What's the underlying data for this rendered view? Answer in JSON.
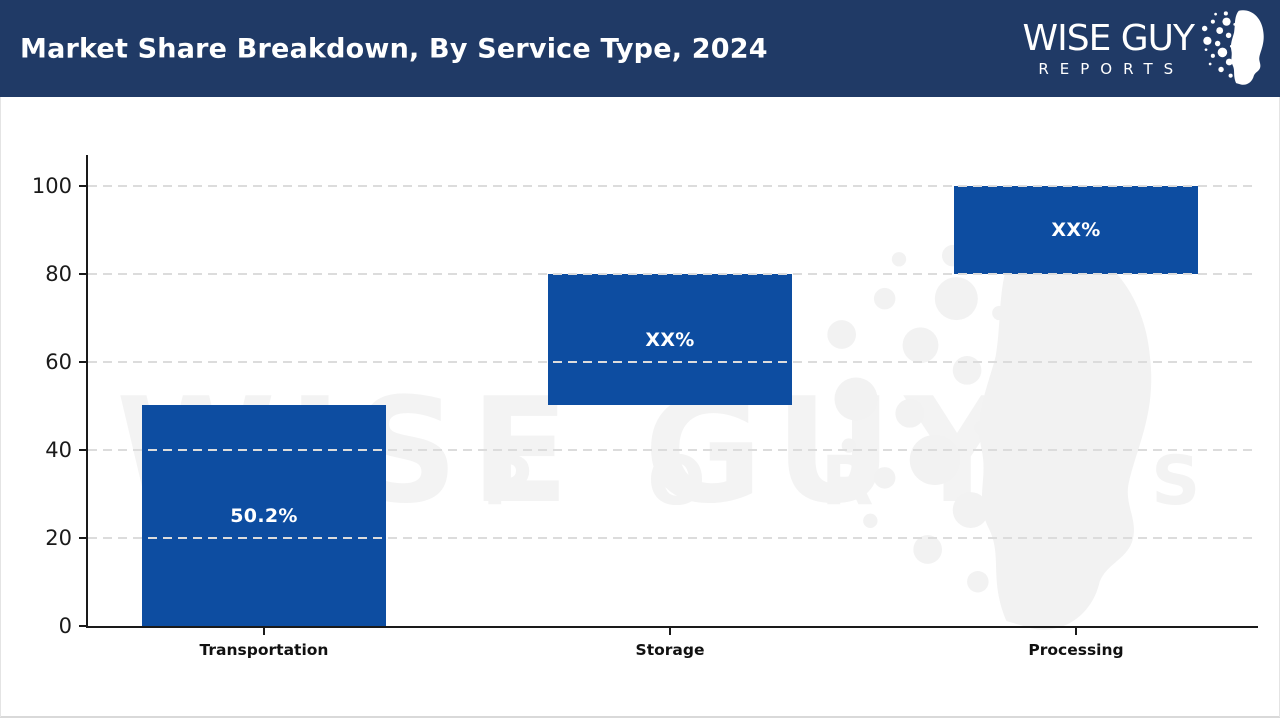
{
  "header": {
    "title": "Market Share Breakdown, By Service Type, 2024",
    "logo": {
      "line1": "WISE GUY",
      "line2": "REPORTS"
    },
    "bg_color": "#203a66"
  },
  "watermark": {
    "line1": "WISE GUY",
    "line2": "R E P O R T S"
  },
  "chart_data": {
    "type": "bar",
    "subtype": "floating-stacked-segments",
    "title": "Market Share Breakdown, By Service Type, 2024",
    "categories": [
      "Transportation",
      "Storage",
      "Processing"
    ],
    "segments": [
      {
        "category": "Transportation",
        "start": 0,
        "end": 50.2,
        "label": "50.2%"
      },
      {
        "category": "Storage",
        "start": 50.2,
        "end": 80,
        "label": "XX%"
      },
      {
        "category": "Processing",
        "start": 80,
        "end": 100,
        "label": "XX%"
      }
    ],
    "yticks": [
      0,
      20,
      40,
      60,
      80,
      100
    ],
    "ylim": [
      0,
      107
    ],
    "xlabel": "",
    "ylabel": "",
    "grid": "dashed-horizontal",
    "legend": "none",
    "bar_color": "#0d4da1",
    "bar_label_color": "#ffffff",
    "axis_color": "#1a1a1a",
    "grid_color": "#dcdcdc",
    "tick_label_color": "#1a1a1a"
  }
}
